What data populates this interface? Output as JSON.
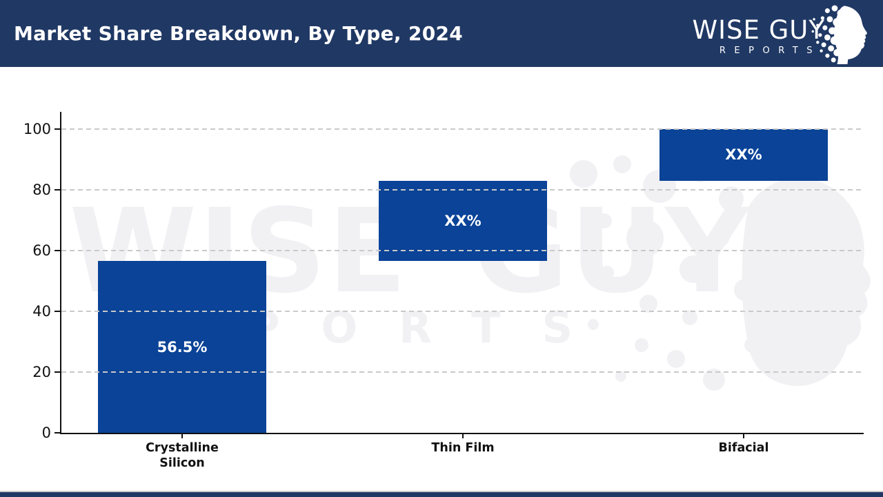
{
  "header": {
    "title": "Market Share Breakdown, By Type, 2024",
    "logo": {
      "name_top": "WISE GUY",
      "name_bottom": "REPORTS"
    }
  },
  "watermark": {
    "big_text": "WISE GUY",
    "small_text": "REPORTS"
  },
  "chart_data": {
    "type": "bar",
    "variant": "waterfall",
    "title": "Market Share Breakdown, By Type, 2024",
    "categories": [
      "Crystalline\nSilicon",
      "Thin Film",
      "Bifacial"
    ],
    "segments": [
      {
        "category": "Crystalline Silicon",
        "start": 0,
        "end": 56.5,
        "label": "56.5%"
      },
      {
        "category": "Thin Film",
        "start": 56.5,
        "end": 83,
        "label": "XX%"
      },
      {
        "category": "Bifacial",
        "start": 83,
        "end": 100,
        "label": "XX%"
      }
    ],
    "xlabel": "",
    "ylabel": "",
    "yticks": [
      0,
      20,
      40,
      60,
      80,
      100
    ],
    "ylim": [
      0,
      105.7
    ],
    "grid": "horizontal-dashed",
    "legend": "none",
    "bar_color": "#0a4397",
    "bar_label_color": "#ffffff",
    "axis_color": "#111111",
    "gridline_color": "#c9c9c9",
    "header_bg_color": "#203864",
    "watermark_color": "#f1f1f4"
  }
}
